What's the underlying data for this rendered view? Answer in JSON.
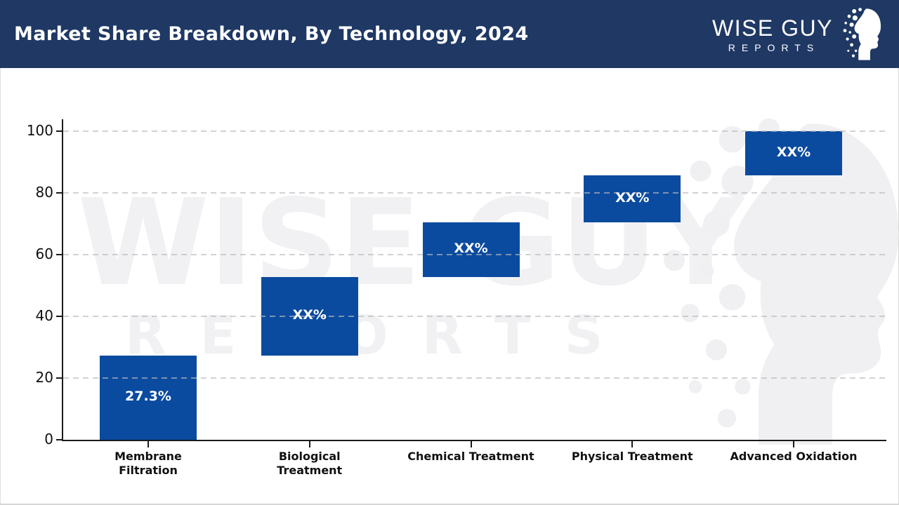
{
  "header": {
    "title": "Market Share Breakdown, By Technology, 2024",
    "bg_color": "#1f3864",
    "logo": {
      "name": "WISE GUY",
      "sub": "REPORTS"
    }
  },
  "watermark": {
    "line1": "WISE GUY",
    "line2": "REPORTS"
  },
  "chart_data": {
    "type": "bar",
    "subtype": "waterfall",
    "title": "Market Share Breakdown, By Technology, 2024",
    "xlabel": "",
    "ylabel": "",
    "categories": [
      "Membrane Filtration",
      "Biological Treatment",
      "Chemical Treatment",
      "Physical Treatment",
      "Advanced Oxidation"
    ],
    "tick_label_lines": [
      [
        "Membrane",
        "Filtration"
      ],
      [
        "Biological",
        "Treatment"
      ],
      [
        "Chemical Treatment"
      ],
      [
        "Physical Treatment"
      ],
      [
        "Advanced Oxidation"
      ]
    ],
    "segments": [
      {
        "category": "Membrane Filtration",
        "start": 0,
        "end": 27.3,
        "label": "27.3%"
      },
      {
        "category": "Biological Treatment",
        "start": 27.3,
        "end": 52.7,
        "label": "XX%"
      },
      {
        "category": "Chemical Treatment",
        "start": 52.7,
        "end": 70.4,
        "label": "XX%"
      },
      {
        "category": "Physical Treatment",
        "start": 70.4,
        "end": 85.6,
        "label": "XX%"
      },
      {
        "category": "Advanced Oxidation",
        "start": 85.6,
        "end": 100,
        "label": "XX%"
      }
    ],
    "yticks": [
      0,
      20,
      40,
      60,
      80,
      100
    ],
    "ylim": [
      0,
      103.8
    ],
    "grid": "horizontal-dashed",
    "legend": false,
    "bar_color": "#0a4b9f",
    "bar_label_color": "#ffffff",
    "axis_color": "#1a1a1a",
    "gridline_color": "#d9d9d9"
  }
}
